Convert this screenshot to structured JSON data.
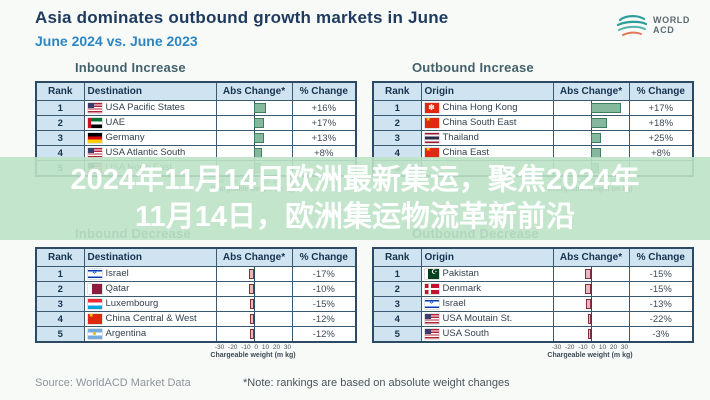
{
  "header": {
    "title": "Asia dominates outbound growth markets in June",
    "subtitle": "June 2024 vs. June 2023",
    "logo": {
      "line1": "WORLD",
      "line2": "ACD"
    }
  },
  "overlay": {
    "line1": "2024年11月14日欧洲最新集运，聚焦2024年",
    "line2": "11月14日，欧洲集运物流革新前沿",
    "background": "#bce2c6",
    "text_color": "#ffffff"
  },
  "axis": {
    "ticks": "-30 -20 -10 0 10 20 30",
    "label": "Chargeable weight (m kg)"
  },
  "footer": {
    "source": "Source: WorldACD Market Data",
    "note": "*Note: rankings are based on absolute weight changes"
  },
  "colors": {
    "increase_bar": "#85b89d",
    "increase_border": "#3f7d62",
    "decrease_bar": "#eab9bd",
    "decrease_border": "#7e2f3c",
    "table_header_bg": "#cfe4f0",
    "title_navy": "#1e3a5f",
    "subtitle_blue": "#2e86c1",
    "overlay_green": "#bce2c6"
  },
  "chart_data": [
    {
      "type": "bar",
      "title": "Inbound Increase",
      "direction": "increase",
      "columns": [
        "Rank",
        "Destination",
        "Abs Change*",
        "% Change"
      ],
      "xlabel": "Chargeable weight (m kg)",
      "xlim": [
        -30,
        30
      ],
      "rows": [
        {
          "rank": "1",
          "flag": "us",
          "name": "USA Pacific States",
          "abs_change": 9,
          "pct_change": "+16%"
        },
        {
          "rank": "2",
          "flag": "ae",
          "name": "UAE",
          "abs_change": 8,
          "pct_change": "+17%"
        },
        {
          "rank": "3",
          "flag": "de",
          "name": "Germany",
          "abs_change": 8,
          "pct_change": "+13%"
        },
        {
          "rank": "4",
          "flag": "us",
          "name": "USA Atlantic South",
          "abs_change": 6,
          "pct_change": "+8%"
        },
        {
          "rank": "5",
          "flag": "us",
          "name": "USA North East",
          "abs_change": 5,
          "pct_change": ""
        }
      ]
    },
    {
      "type": "bar",
      "title": "Outbound Increase",
      "direction": "increase",
      "columns": [
        "Rank",
        "Origin",
        "Abs Change*",
        "% Change"
      ],
      "xlabel": "Chargeable weight (m kg)",
      "xlim": [
        -30,
        30
      ],
      "rows": [
        {
          "rank": "1",
          "flag": "hk",
          "name": "China Hong Kong",
          "abs_change": 23,
          "pct_change": "+17%"
        },
        {
          "rank": "2",
          "flag": "cn",
          "name": "China South East",
          "abs_change": 12,
          "pct_change": "+18%"
        },
        {
          "rank": "3",
          "flag": "th",
          "name": "Thailand",
          "abs_change": 8,
          "pct_change": "+25%"
        },
        {
          "rank": "4",
          "flag": "cn",
          "name": "China East",
          "abs_change": 8,
          "pct_change": "+8%"
        },
        {
          "rank": "5",
          "flag": "none",
          "name": "",
          "abs_change": 6,
          "pct_change": ""
        }
      ]
    },
    {
      "type": "bar",
      "title": "Inbound Decrease",
      "direction": "decrease",
      "columns": [
        "Rank",
        "Destination",
        "Abs Change*",
        "% Change"
      ],
      "xlabel": "Chargeable weight (m kg)",
      "xlim": [
        -30,
        30
      ],
      "rows": [
        {
          "rank": "1",
          "flag": "il",
          "name": "Israel",
          "abs_change": -4,
          "pct_change": "-17%"
        },
        {
          "rank": "2",
          "flag": "qa",
          "name": "Qatar",
          "abs_change": -4,
          "pct_change": "-10%"
        },
        {
          "rank": "3",
          "flag": "lu",
          "name": "Luxembourg",
          "abs_change": -3,
          "pct_change": "-15%"
        },
        {
          "rank": "4",
          "flag": "cn",
          "name": "China Central & West",
          "abs_change": -3,
          "pct_change": "-12%"
        },
        {
          "rank": "5",
          "flag": "ar",
          "name": "Argentina",
          "abs_change": -3,
          "pct_change": "-12%"
        }
      ]
    },
    {
      "type": "bar",
      "title": "Outbound Decrease",
      "direction": "decrease",
      "columns": [
        "Rank",
        "Origin",
        "Abs Change*",
        "% Change"
      ],
      "xlabel": "Chargeable weight (m kg)",
      "xlim": [
        -30,
        30
      ],
      "rows": [
        {
          "rank": "1",
          "flag": "pk",
          "name": "Pakistan",
          "abs_change": -5,
          "pct_change": "-15%"
        },
        {
          "rank": "2",
          "flag": "dk",
          "name": "Denmark",
          "abs_change": -5,
          "pct_change": "-15%"
        },
        {
          "rank": "3",
          "flag": "il",
          "name": "Israel",
          "abs_change": -4,
          "pct_change": "-13%"
        },
        {
          "rank": "4",
          "flag": "us",
          "name": "USA Moutain St.",
          "abs_change": -2,
          "pct_change": "-22%"
        },
        {
          "rank": "5",
          "flag": "us",
          "name": "USA South",
          "abs_change": -2,
          "pct_change": "-3%"
        }
      ]
    }
  ]
}
